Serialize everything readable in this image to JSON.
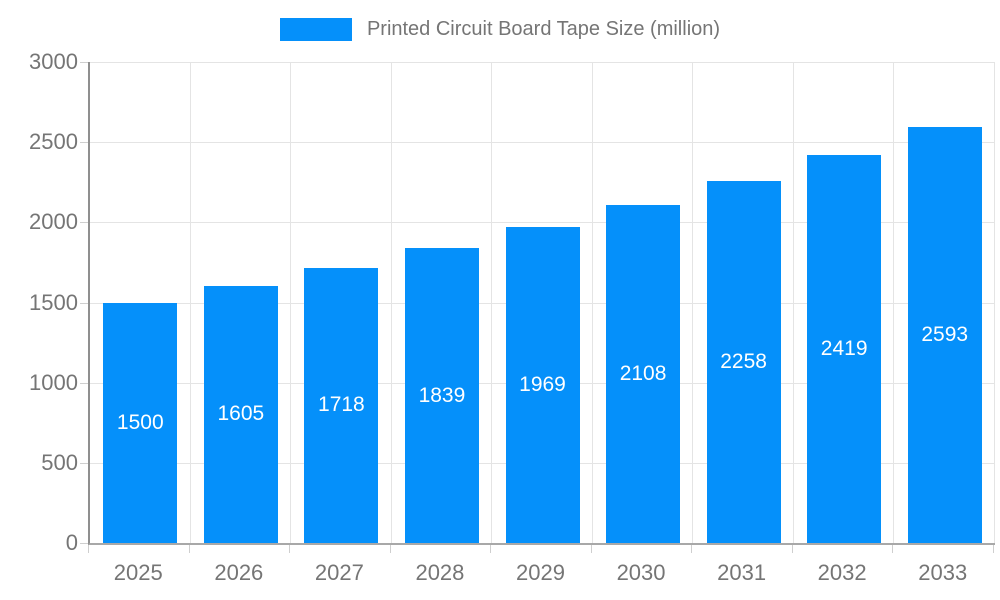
{
  "chart_data": {
    "type": "bar",
    "title": "Printed Circuit Board Tape Size (million)",
    "categories": [
      "2025",
      "2026",
      "2027",
      "2028",
      "2029",
      "2030",
      "2031",
      "2032",
      "2033"
    ],
    "values": [
      1500,
      1605,
      1718,
      1839,
      1969,
      2108,
      2258,
      2419,
      2593
    ],
    "value_labels": [
      "1500",
      "1605",
      "1718",
      "1839",
      "1969",
      "2108",
      "2258",
      "2419",
      "2593"
    ],
    "xlabel": "",
    "ylabel": "",
    "ylim": [
      0,
      3000
    ],
    "yticks": [
      0,
      500,
      1000,
      1500,
      2000,
      2500,
      3000
    ],
    "ytick_labels": [
      "0",
      "500",
      "1000",
      "1500",
      "2000",
      "2500",
      "3000"
    ],
    "grid": "on",
    "legend_position": "top-center",
    "bar_color": "#0590fa",
    "value_label_color": "#ffffff",
    "axis_text_color": "#757575",
    "gridline_color": "#e4e4e4"
  }
}
